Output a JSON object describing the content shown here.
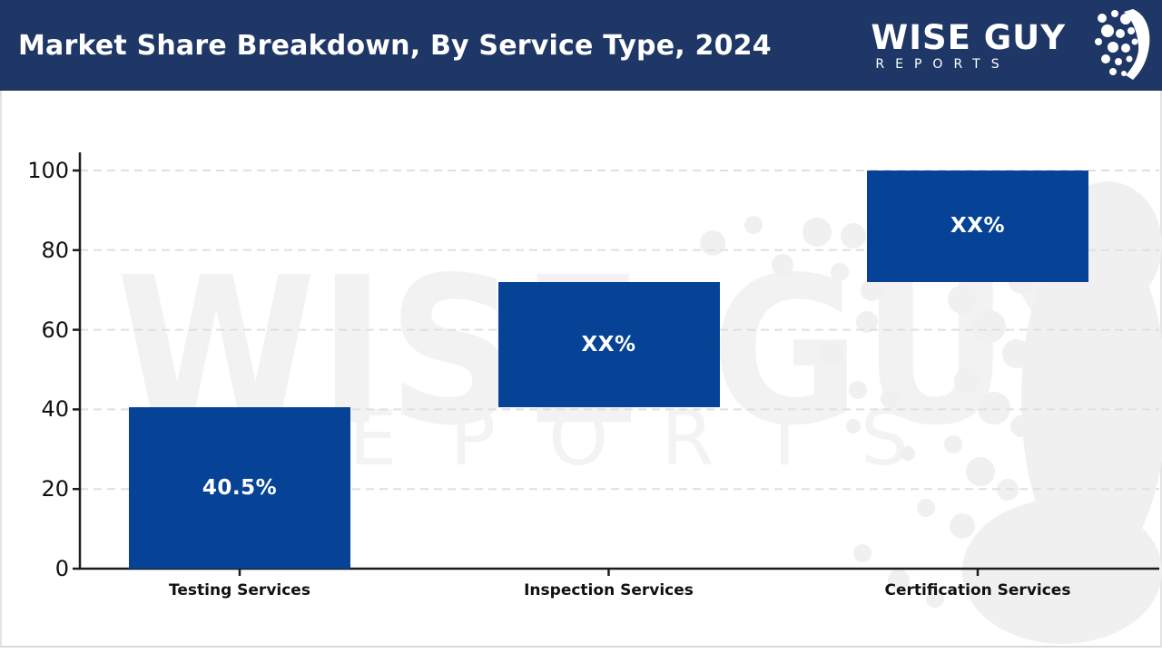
{
  "header": {
    "title": "Market Share Breakdown, By Service Type, 2024",
    "logo": {
      "name": "WISE GUY",
      "sub": "REPORTS"
    }
  },
  "watermark": {
    "line1": "WISE GUY",
    "line2": "REPORTS"
  },
  "chart_data": {
    "type": "bar",
    "subtype": "floating-waterfall-bars",
    "title": "Market Share Breakdown, By Service Type, 2024",
    "categories": [
      "Testing Services",
      "Inspection Services",
      "Certification Services"
    ],
    "segments": [
      {
        "category": "Testing Services",
        "start": 0,
        "end": 40.5,
        "label": "40.5%"
      },
      {
        "category": "Inspection Services",
        "start": 40.5,
        "end": 72,
        "label": "XX%"
      },
      {
        "category": "Certification Services",
        "start": 72,
        "end": 100,
        "label": "XX%"
      }
    ],
    "xlabel": "",
    "ylabel": "",
    "ylim": [
      0,
      100
    ],
    "yticks": [
      0,
      20,
      40,
      60,
      80,
      100
    ],
    "grid": "horizontal-dashed",
    "legend": "none",
    "colors": {
      "bar": "#064396",
      "bar_label": "#ffffff",
      "header_bg": "#1f3767",
      "grid_line": "#e0e0e0",
      "axis": "#1c1c1c",
      "tick_text": "#111111",
      "watermark": "#f2f2f2"
    }
  }
}
